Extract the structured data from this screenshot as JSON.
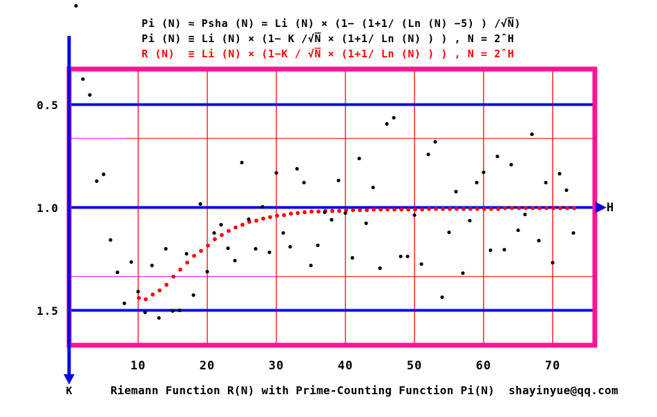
{
  "page": {
    "formulas": {
      "line1": "Pi (N) ≈ Psha (N) = Li (N) × (1− (1+1/ (Ln (N) −5) ) /√N̅)",
      "line2": "Pi (N) ≡ Li (N) × (1− K /√N̅ × (1+1/ Ln (N) ) ) , N = 2ˆH",
      "line3": "R (N)  ≡ Li (N) × (1−K / √N̅ × (1+1/ Ln (N) ) ) , N = 2ˆH"
    },
    "caption": "Riemann Function R(N) with Prime-Counting Function Pi(N)  shayinyue@qq.com"
  },
  "axis_labels": {
    "x": "H",
    "y": "K"
  },
  "colors": {
    "frame": "#ff1493",
    "axes": "#0a0ae0",
    "grid": "#ff0000",
    "grid_alt": "#ff00ff",
    "scatter": "#000000",
    "curve": "#ff0000",
    "text": "#000000"
  },
  "chart_data": {
    "type": "scatter",
    "title": "Riemann Function R(N) with Prime-Counting Function Pi(N)",
    "xlabel": "H",
    "ylabel": "K",
    "x_ticks": [
      10,
      20,
      30,
      40,
      50,
      60,
      70
    ],
    "y_ticks": [
      "0.5",
      "1.0",
      "1.5"
    ],
    "y_axis_inverted": true,
    "xlim": [
      0,
      76
    ],
    "ylim": [
      0.5,
      1.5
    ],
    "minor_hlines": [
      0.664,
      1.336
    ],
    "grid": "on",
    "legend_position": "none",
    "series": [
      {
        "name": "Pi(N) prime-counting points, N=2^H",
        "marker": "dot",
        "color": "#000000",
        "h_start": 1,
        "k": [
          0.02,
          0.376,
          0.453,
          0.872,
          0.839,
          1.158,
          1.315,
          1.466,
          1.265,
          1.409,
          1.51,
          1.282,
          1.537,
          1.201,
          1.503,
          1.5,
          1.225,
          1.426,
          0.983,
          1.312,
          1.124,
          1.084,
          1.198,
          1.258,
          0.782,
          1.057,
          1.201,
          0.997,
          1.218,
          0.832,
          1.124,
          1.191,
          0.812,
          0.879,
          1.282,
          1.184,
          1.023,
          1.06,
          0.869,
          1.027,
          1.245,
          0.762,
          1.077,
          0.903,
          1.295,
          0.594,
          0.564,
          1.238,
          1.238,
          1.037,
          1.275,
          0.742,
          0.681,
          1.436,
          1.121,
          0.923,
          1.319,
          1.064,
          0.879,
          0.829,
          1.208,
          0.752,
          1.205,
          0.792,
          1.111,
          1.034,
          0.644,
          1.161,
          0.879,
          1.268,
          0.836,
          0.916,
          1.124
        ]
      },
      {
        "name": "R(N) Riemann function dotted curve, N=2^H",
        "marker": "dot",
        "color": "#ff0000",
        "h_start": 10,
        "k": [
          1.44,
          1.446,
          1.423,
          1.403,
          1.376,
          1.336,
          1.302,
          1.268,
          1.235,
          1.211,
          1.185,
          1.154,
          1.134,
          1.114,
          1.097,
          1.084,
          1.07,
          1.064,
          1.054,
          1.047,
          1.04,
          1.037,
          1.03,
          1.027,
          1.023,
          1.02,
          1.02,
          1.017,
          1.017,
          1.017,
          1.013,
          1.013,
          1.013,
          1.013,
          1.01,
          1.01,
          1.01,
          1.01,
          1.01,
          1.01,
          1.01,
          1.01,
          1.007,
          1.007,
          1.007,
          1.007,
          1.007,
          1.007,
          1.007,
          1.007,
          1.007,
          1.007,
          1.007,
          1.003,
          1.003,
          1.003,
          1.003,
          1.003,
          1.003,
          1.003,
          1.003,
          1.003,
          1.003,
          1.003
        ]
      }
    ]
  }
}
